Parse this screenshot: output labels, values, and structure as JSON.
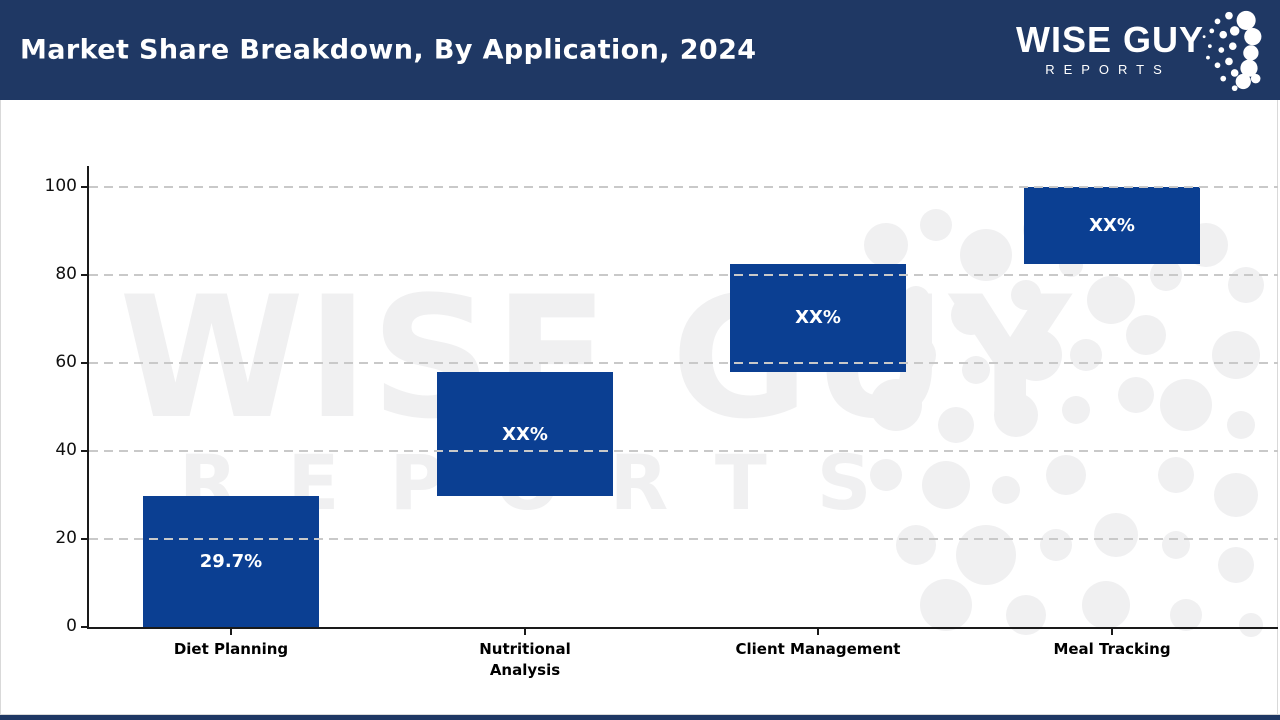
{
  "header": {
    "title": "Market Share Breakdown, By Application, 2024",
    "logo": {
      "line1": "WISE GUY",
      "line2": "REPORTS"
    }
  },
  "watermark": {
    "line1": "WISE GUY",
    "line2": "REPORTS"
  },
  "colors": {
    "header_bg": "#1f3864",
    "bar": "#0b3f92",
    "grid": "#c9c9c9",
    "axis": "#1a1a1a",
    "watermark": "#f0f0f1",
    "bar_label_text": "#ffffff"
  },
  "chart_data": {
    "type": "bar",
    "subtype": "waterfall",
    "title": "Market Share Breakdown, By Application, 2024",
    "categories": [
      "Diet Planning",
      "Nutritional\nAnalysis",
      "Client Management",
      "Meal Tracking"
    ],
    "segments": [
      {
        "category": "Diet Planning",
        "label": "29.7%",
        "start": 0,
        "end": 29.7
      },
      {
        "category": "Nutritional Analysis",
        "label": "XX%",
        "start": 29.7,
        "end": 58.0
      },
      {
        "category": "Client Management",
        "label": "XX%",
        "start": 58.0,
        "end": 82.5
      },
      {
        "category": "Meal Tracking",
        "label": "XX%",
        "start": 82.5,
        "end": 100
      }
    ],
    "ylim": [
      0,
      100
    ],
    "yticks": [
      0,
      20,
      40,
      60,
      80,
      100
    ],
    "xlabel": "",
    "ylabel": "",
    "grid": "horizontal-dashed-over-bars",
    "legend": "none"
  }
}
